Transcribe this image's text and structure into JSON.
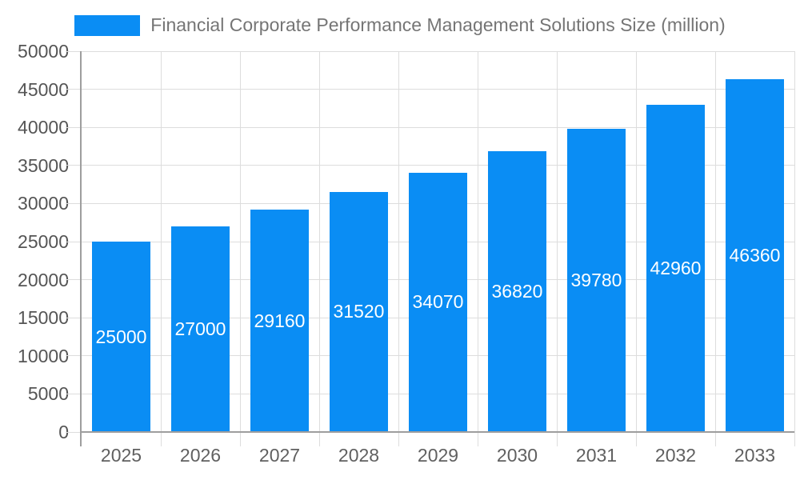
{
  "legend": {
    "label": "Financial Corporate Performance Management Solutions Size (million)"
  },
  "chart_data": {
    "type": "bar",
    "title": "Financial Corporate Performance Management Solutions Size (million)",
    "categories": [
      "2025",
      "2026",
      "2027",
      "2028",
      "2029",
      "2030",
      "2031",
      "2032",
      "2033"
    ],
    "values": [
      25000,
      27000,
      29160,
      31520,
      34070,
      36820,
      39780,
      42960,
      46360
    ],
    "xlabel": "",
    "ylabel": "",
    "ylim": [
      0,
      50000
    ],
    "yticks": [
      0,
      5000,
      10000,
      15000,
      20000,
      25000,
      30000,
      35000,
      40000,
      45000,
      50000
    ],
    "grid": true,
    "legend_position": "top-center",
    "value_labels": "inside-center"
  },
  "colors": {
    "bar": "#0a8df4",
    "grid": "#dddddd",
    "axis": "#9e9e9e",
    "axis_tick_label": "#555555",
    "x_tick_label": "#606060",
    "legend_text": "#757575",
    "bar_value_label": "#ffffff",
    "background": "#ffffff"
  }
}
